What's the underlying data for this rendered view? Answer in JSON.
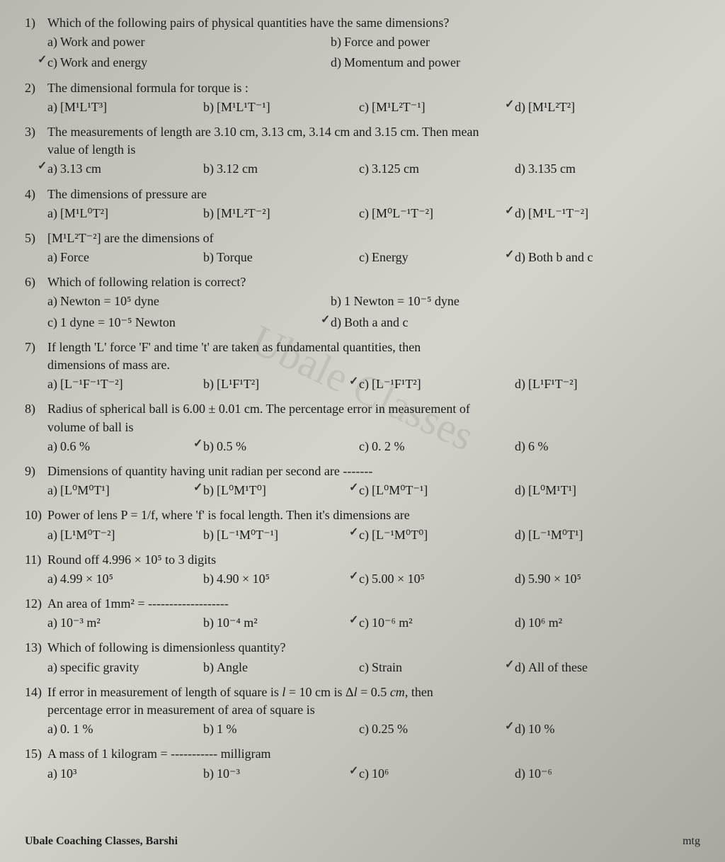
{
  "watermark": "Ubale Classes",
  "footer": {
    "left": "Ubale Coaching Classes, Barshi",
    "right": "mtg"
  },
  "questions": [
    {
      "num": "1)",
      "text": "Which of the following pairs of physical quantities have the same dimensions?",
      "layout": "two-col",
      "options": [
        {
          "label": "a)",
          "text": "Work and power"
        },
        {
          "label": "b)",
          "text": "Force and power"
        },
        {
          "label": "c)",
          "text": "Work and energy",
          "checked": true
        },
        {
          "label": "d)",
          "text": "Momentum and power"
        }
      ]
    },
    {
      "num": "2)",
      "text": "The dimensional formula for torque is :",
      "layout": "four-col",
      "options": [
        {
          "label": "a)",
          "html": "[M¹L¹T³]"
        },
        {
          "label": "b)",
          "html": "[M¹L¹T⁻¹]"
        },
        {
          "label": "c)",
          "html": "[M¹L²T⁻¹]"
        },
        {
          "label": "d)",
          "html": "[M¹L²T²]",
          "checked": true
        }
      ]
    },
    {
      "num": "3)",
      "text": "The measurements of length are 3.10 cm, 3.13 cm, 3.14 cm and 3.15 cm. Then mean",
      "subtext": "value of length is",
      "layout": "four-col",
      "options": [
        {
          "label": "a)",
          "text": "3.13 cm",
          "checked": true
        },
        {
          "label": "b)",
          "text": "3.12 cm"
        },
        {
          "label": "c)",
          "text": "3.125 cm"
        },
        {
          "label": "d)",
          "text": "3.135 cm"
        }
      ]
    },
    {
      "num": "4)",
      "text": "The dimensions of pressure are",
      "layout": "four-col",
      "options": [
        {
          "label": "a)",
          "html": "[M¹L⁰T²]"
        },
        {
          "label": "b)",
          "html": "[M¹L²T⁻²]"
        },
        {
          "label": "c)",
          "html": "[M⁰L⁻¹T⁻²]"
        },
        {
          "label": "d)",
          "html": "[M¹L⁻¹T⁻²]",
          "checked": true
        }
      ]
    },
    {
      "num": "5)",
      "html": "[M¹L²T⁻²] are the dimensions of",
      "layout": "four-col",
      "options": [
        {
          "label": "a)",
          "text": "Force"
        },
        {
          "label": "b)",
          "text": "Torque"
        },
        {
          "label": "c)",
          "text": "Energy"
        },
        {
          "label": "d)",
          "text": "Both b and c",
          "checked": true
        }
      ]
    },
    {
      "num": "6)",
      "text": "Which of following relation is correct?",
      "layout": "two-col",
      "options": [
        {
          "label": "a)",
          "html": "Newton = 10⁵ dyne"
        },
        {
          "label": "b)",
          "html": "1 Newton = 10⁻⁵ dyne"
        },
        {
          "label": "c)",
          "html": "1 dyne = 10⁻⁵ Newton"
        },
        {
          "label": "d)",
          "text": "Both a and c",
          "checked": true
        }
      ]
    },
    {
      "num": "7)",
      "text": "If length 'L' force 'F' and time 't' are taken as fundamental quantities, then",
      "subtext": "dimensions of mass are.",
      "layout": "four-col",
      "options": [
        {
          "label": "a)",
          "html": "[L⁻¹F⁻¹T⁻²]"
        },
        {
          "label": "b)",
          "html": "[L¹F¹T²]"
        },
        {
          "label": "c)",
          "html": "[L⁻¹F¹T²]",
          "checked": true
        },
        {
          "label": "d)",
          "html": "[L¹F¹T⁻²]"
        }
      ]
    },
    {
      "num": "8)",
      "html": "Radius of spherical ball is 6.00 ± 0.01 cm. The percentage error in measurement of",
      "subtext": "volume of ball is",
      "layout": "four-col",
      "options": [
        {
          "label": "a)",
          "text": "0.6 %"
        },
        {
          "label": "b)",
          "text": "0.5 %",
          "checked": true
        },
        {
          "label": "c)",
          "text": "0. 2 %"
        },
        {
          "label": "d)",
          "text": "6 %"
        }
      ]
    },
    {
      "num": "9)",
      "text": "Dimensions of quantity having unit radian per second are -------",
      "layout": "four-col",
      "options": [
        {
          "label": "a)",
          "html": "[L⁰M⁰T¹]"
        },
        {
          "label": "b)",
          "html": "[L⁰M¹T⁰]",
          "checked": true
        },
        {
          "label": "c)",
          "html": "[L⁰M⁰T⁻¹]",
          "checked": true
        },
        {
          "label": "d)",
          "html": "[L⁰M¹T¹]"
        }
      ]
    },
    {
      "num": "10)",
      "text": "Power of lens P = 1/f, where 'f' is focal length. Then it's dimensions are",
      "layout": "four-col",
      "options": [
        {
          "label": "a)",
          "html": "[L¹M⁰T⁻²]"
        },
        {
          "label": "b)",
          "html": "[L⁻¹M⁰T⁻¹]"
        },
        {
          "label": "c)",
          "html": "[L⁻¹M⁰T⁰]",
          "checked": true
        },
        {
          "label": "d)",
          "html": "[L⁻¹M⁰T¹]"
        }
      ]
    },
    {
      "num": "11)",
      "html": "Round off 4.996 × 10⁵ to 3 digits",
      "layout": "four-col",
      "options": [
        {
          "label": "a)",
          "html": "4.99 × 10⁵"
        },
        {
          "label": "b)",
          "html": "4.90 × 10⁵"
        },
        {
          "label": "c)",
          "html": "5.00 × 10⁵",
          "checked": true
        },
        {
          "label": "d)",
          "html": "5.90 × 10⁵"
        }
      ]
    },
    {
      "num": "12)",
      "html": "An area of 1mm² = -------------------",
      "layout": "four-col",
      "options": [
        {
          "label": "a)",
          "html": "10⁻³ m²"
        },
        {
          "label": "b)",
          "html": "10⁻⁴ m²"
        },
        {
          "label": "c)",
          "html": "10⁻⁶ m²",
          "checked": true
        },
        {
          "label": "d)",
          "html": "10⁶ m²"
        }
      ]
    },
    {
      "num": "13)",
      "text": "Which of following is dimensionless quantity?",
      "layout": "four-col",
      "options": [
        {
          "label": "a)",
          "text": "specific gravity"
        },
        {
          "label": "b)",
          "text": "Angle"
        },
        {
          "label": "c)",
          "text": "Strain"
        },
        {
          "label": "d)",
          "text": "All of these",
          "checked": true
        }
      ]
    },
    {
      "num": "14)",
      "html": "If error in measurement of length of square is <i>l</i> = 10 cm is Δ<i>l</i> = 0.5 <i>cm</i>, then",
      "subtext": "percentage error in measurement of area of square is",
      "layout": "four-col",
      "options": [
        {
          "label": "a)",
          "text": "0. 1 %"
        },
        {
          "label": "b)",
          "text": "1 %"
        },
        {
          "label": "c)",
          "text": "0.25 %"
        },
        {
          "label": "d)",
          "text": "10 %",
          "checked": true
        }
      ]
    },
    {
      "num": "15)",
      "text": "A mass of 1 kilogram = ----------- milligram",
      "layout": "four-col",
      "options": [
        {
          "label": "a)",
          "html": "10³"
        },
        {
          "label": "b)",
          "html": "10⁻³"
        },
        {
          "label": "c)",
          "html": "10⁶",
          "checked": true
        },
        {
          "label": "d)",
          "html": "10⁻⁶"
        }
      ]
    }
  ]
}
